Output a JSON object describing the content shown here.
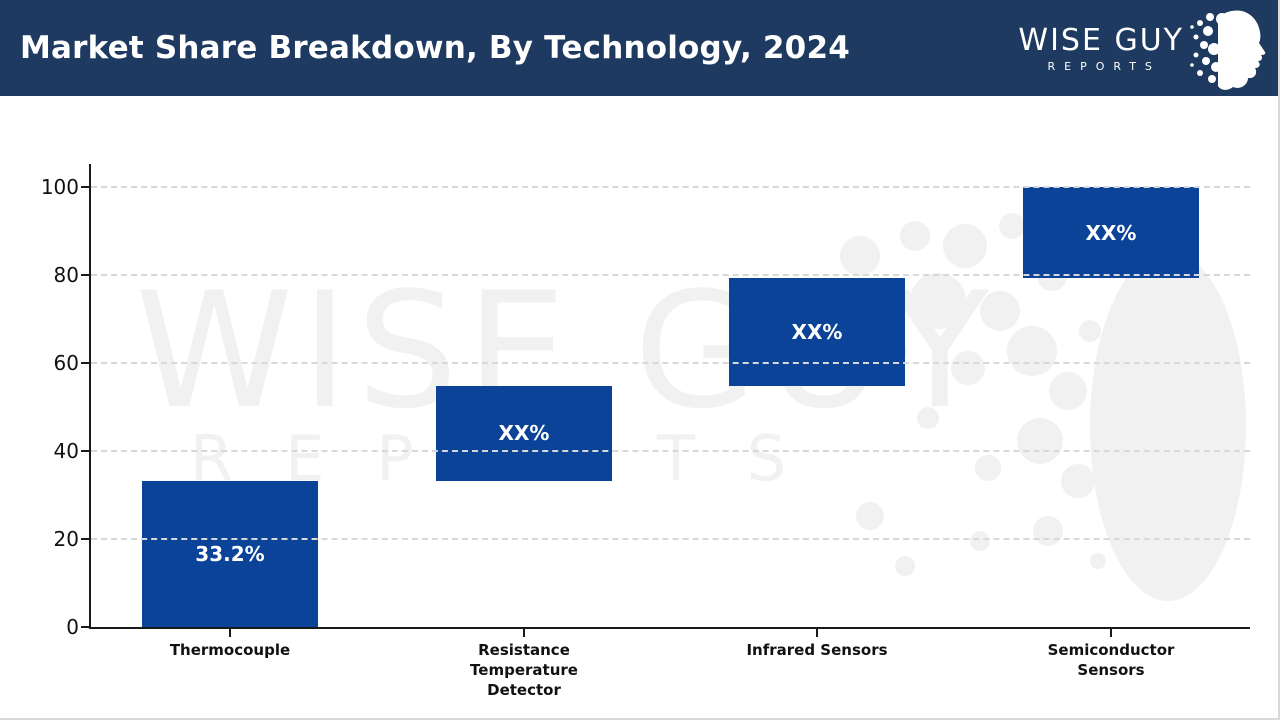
{
  "header": {
    "title": "Market Share Breakdown, By Technology, 2024",
    "background_color": "#1f3a60",
    "logo": {
      "name": "WISE GUY",
      "subtitle": "REPORTS"
    }
  },
  "watermark": {
    "line1": "WISE GUY",
    "line2": "REPORTS"
  },
  "chart_data": {
    "type": "bar",
    "variant": "waterfall",
    "title": "Market Share Breakdown, By Technology, 2024",
    "categories": [
      "Thermocouple",
      "Resistance Temperature Detector",
      "Infrared Sensors",
      "Semiconductor Sensors"
    ],
    "category_lines": [
      [
        "Thermocouple"
      ],
      [
        "Resistance",
        "Temperature",
        "Detector"
      ],
      [
        "Infrared Sensors"
      ],
      [
        "Semiconductor",
        "Sensors"
      ]
    ],
    "segments": [
      {
        "category": "Thermocouple",
        "start": 0,
        "end": 33.2,
        "label": "33.2%"
      },
      {
        "category": "Resistance Temperature Detector",
        "start": 33.2,
        "end": 54.8,
        "label": "XX%"
      },
      {
        "category": "Infrared Sensors",
        "start": 54.8,
        "end": 79.3,
        "label": "XX%"
      },
      {
        "category": "Semiconductor Sensors",
        "start": 79.3,
        "end": 100,
        "label": "XX%"
      }
    ],
    "y_ticks": [
      0,
      20,
      40,
      60,
      80,
      100
    ],
    "ylim": [
      0,
      100
    ],
    "xlabel": "",
    "ylabel": "",
    "grid": "horizontal-dashed",
    "legend": "none",
    "bar_color": "#0a4398",
    "value_label_color": "#ffffff"
  }
}
